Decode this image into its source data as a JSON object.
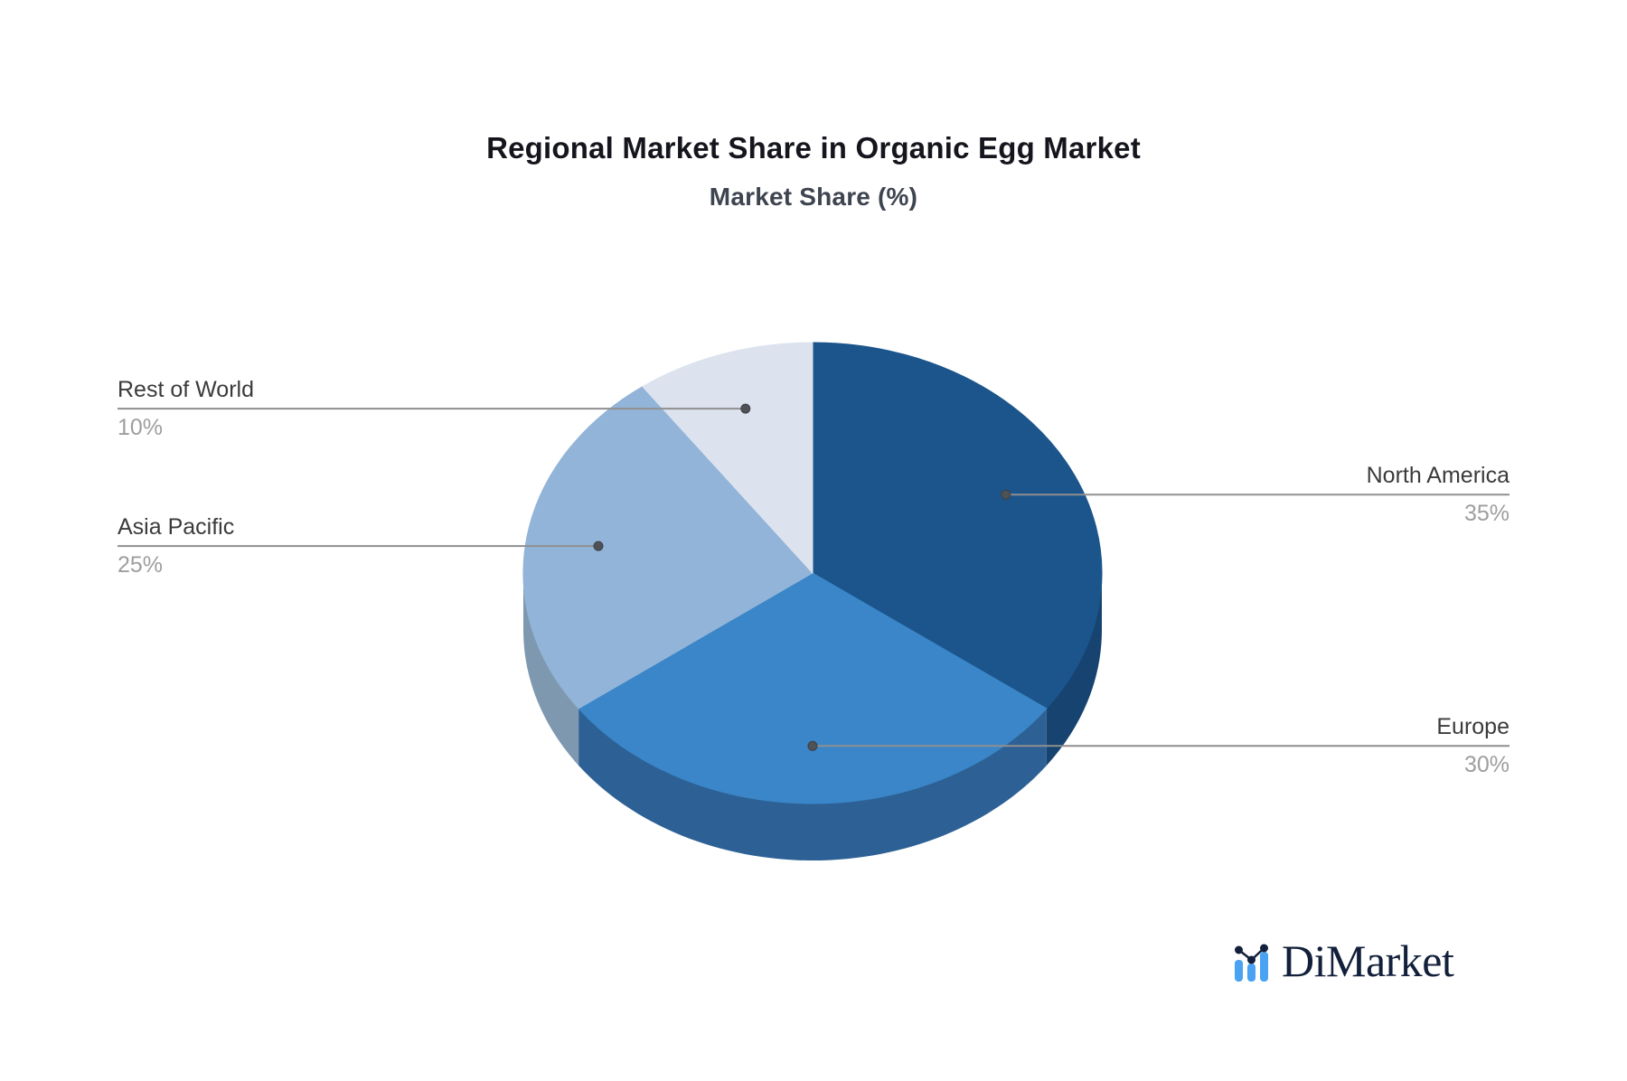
{
  "chart_data": {
    "type": "pie",
    "style": "pie3d",
    "title": "Regional Market Share in Organic Egg Market",
    "subtitle": "Market Share (%)",
    "unit": "%",
    "start_angle_deg": 0,
    "direction": "clockwise",
    "legend_position": "none",
    "label_style": "leader-lines",
    "segments": [
      {
        "label": "North America",
        "value": 35,
        "display_value": "35%",
        "color": "#1b558c",
        "side_color": "#16436f"
      },
      {
        "label": "Europe",
        "value": 30,
        "display_value": "30%",
        "color": "#3a86c8",
        "side_color": "#2d6195"
      },
      {
        "label": "Asia Pacific",
        "value": 25,
        "display_value": "25%",
        "color": "#92b4d8",
        "side_color": "#7e98b0"
      },
      {
        "label": "Rest of World",
        "value": 10,
        "display_value": "10%",
        "color": "#dde3ee",
        "side_color": "#b9c3d2"
      }
    ]
  },
  "branding": {
    "logo_text": "DiMarket",
    "logo_icon": "bar-line-chart-icon"
  },
  "colors": {
    "background": "#ffffff",
    "title": "#15151d",
    "subtitle": "#3e4450",
    "label_text": "#3b3b3b",
    "value_text": "#9e9e9e",
    "leader_line": "#8f8f8f",
    "leader_dot": "#4e5257",
    "logo_bar": "#4aa2f2",
    "logo_dark": "#13203c"
  }
}
